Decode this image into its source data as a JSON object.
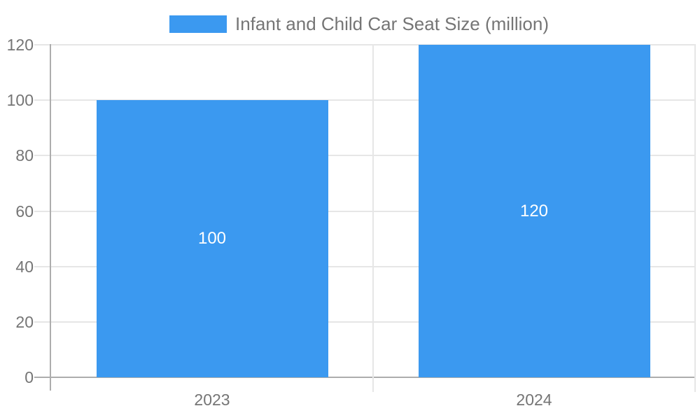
{
  "legend": {
    "label": "Infant and Child Car Seat Size (million)"
  },
  "chart_data": {
    "type": "bar",
    "title": "Infant and Child Car Seat Size (million)",
    "categories": [
      "2023",
      "2024"
    ],
    "series": [
      {
        "name": "Infant and Child Car Seat Size (million)",
        "values": [
          100,
          120
        ]
      }
    ],
    "bar_value_labels": [
      "100",
      "120"
    ],
    "xlabel": "",
    "ylabel": "",
    "ylim": [
      0,
      120
    ],
    "yticks": [
      0,
      20,
      40,
      60,
      80,
      100,
      120
    ],
    "grid": "horizontal gridlines plus category-boundary vertical lines",
    "legend_position": "top-center",
    "colors": {
      "bar": "#3b99f0",
      "gridline": "#e6e6e6",
      "axis": "#adadad",
      "tick_label": "#757575",
      "bar_label": "#ffffff",
      "background": "#ffffff"
    }
  }
}
